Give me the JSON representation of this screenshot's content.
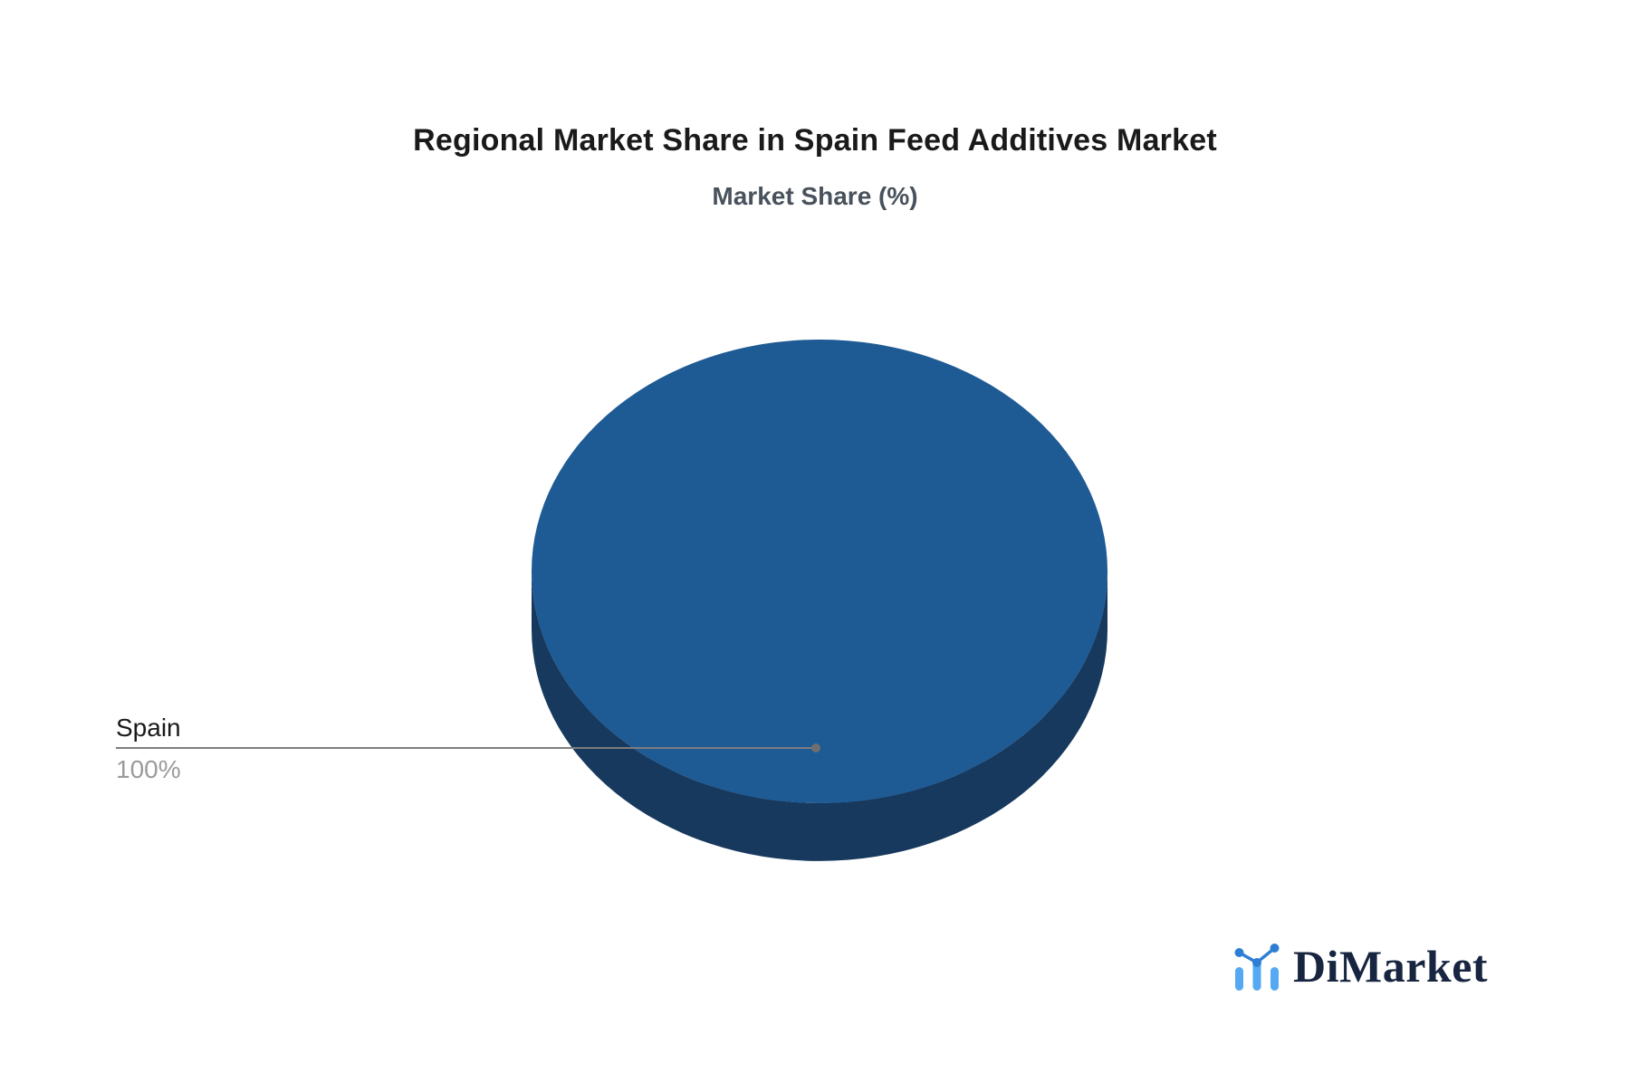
{
  "page": {
    "background": "#ffffff"
  },
  "chart_data": {
    "type": "pie",
    "style": "3d-pie",
    "title": "Regional Market Share in Spain Feed Additives Market",
    "subtitle": "Market Share (%)",
    "categories": [
      "Spain"
    ],
    "values": [
      100
    ],
    "value_labels": [
      "100%"
    ],
    "unit": "%",
    "legend_position": "none",
    "label_position": "left-callout",
    "colors": {
      "slice_top": "#1e5a94",
      "slice_side": "#17395e",
      "leader_line": "#7d7d7d",
      "leader_dot": "#6f6f6f",
      "label_name": "#1a1a1a",
      "label_value": "#9b9b9b",
      "title": "#1a1a1a",
      "subtitle": "#49525c"
    }
  },
  "logo": {
    "text": "DiMarket",
    "text_color": "#172540",
    "icon": {
      "name": "bar-line-chart-icon",
      "bar_color": "#55a9f2",
      "accent_color": "#2e7fd3"
    }
  }
}
